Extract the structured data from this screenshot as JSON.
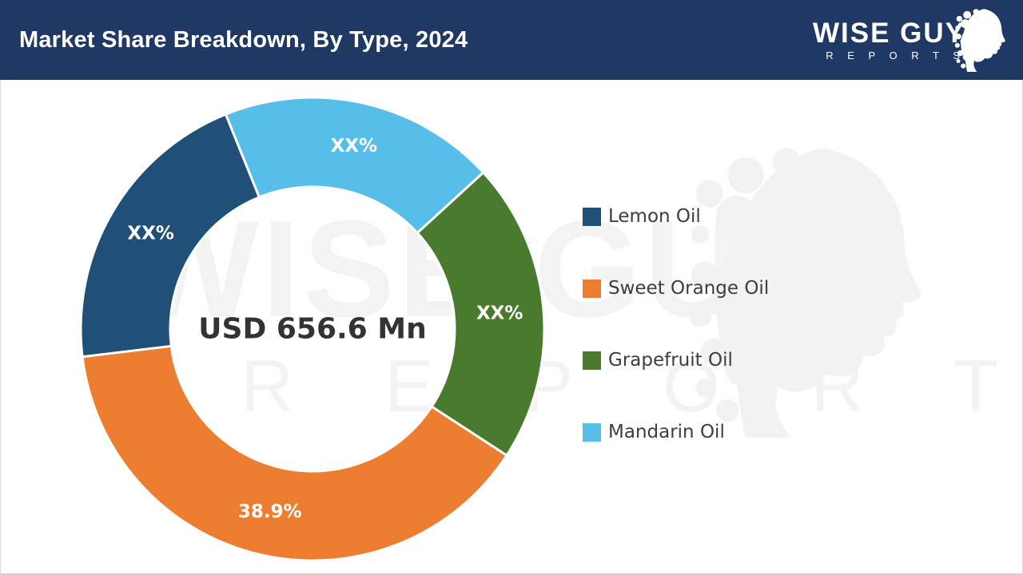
{
  "header": {
    "title": "Market Share Breakdown, By Type, 2024",
    "logo": {
      "line1": "WISE GUY",
      "line2": "R E P O R T S"
    }
  },
  "watermark": {
    "line1": "WISE GUY",
    "line2": "R E P O R T S"
  },
  "chart_data": {
    "type": "pie",
    "subtype": "donut",
    "title": "Market Share Breakdown, By Type, 2024",
    "center_label": "USD 656.6 Mn",
    "legend_position": "right",
    "start_angle_deg": -22,
    "draw_direction": "clockwise",
    "label_color": "#ffffff",
    "series": [
      {
        "name": "Lemon Oil",
        "value_pct": 20.8,
        "display_label": "XX%",
        "color": "#205077"
      },
      {
        "name": "Sweet Orange Oil",
        "value_pct": 38.9,
        "display_label": "38.9%",
        "color": "#ed7d31"
      },
      {
        "name": "Grapefruit Oil",
        "value_pct": 21.0,
        "display_label": "XX%",
        "color": "#4a7a2e"
      },
      {
        "name": "Mandarin Oil",
        "value_pct": 19.3,
        "display_label": "XX%",
        "color": "#56bee8"
      }
    ]
  }
}
